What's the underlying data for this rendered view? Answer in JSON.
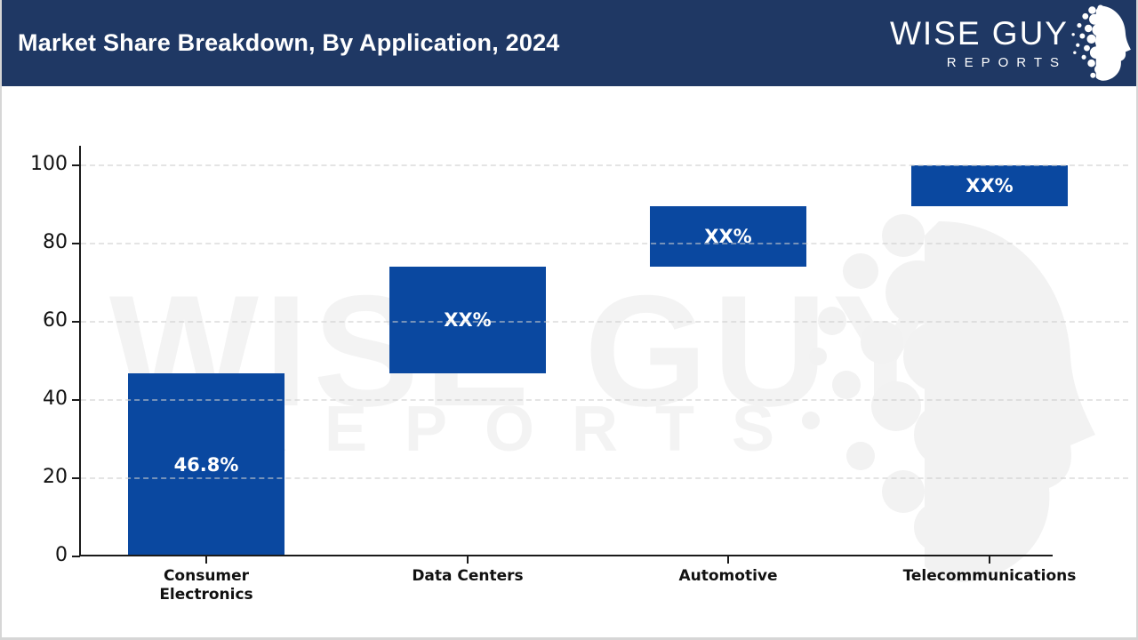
{
  "header": {
    "title": "Market Share Breakdown, By Application, 2024",
    "bg_color": "#1f3864",
    "logo": {
      "line1": "WISE GUY",
      "line2": "REPORTS"
    }
  },
  "watermark": {
    "line1": "WISE GUY",
    "line2": "REPORTS"
  },
  "chart_data": {
    "type": "bar",
    "subtype": "waterfall",
    "title": "Market Share Breakdown, By Application, 2024",
    "xlabel": "",
    "ylabel": "",
    "ylim": [
      0,
      105
    ],
    "yticks": [
      0,
      20,
      40,
      60,
      80,
      100
    ],
    "grid": true,
    "grid_style": "dashed",
    "bar_color": "#0a48a0",
    "label_color": "#ffffff",
    "categories": [
      "Consumer Electronics",
      "Data Centers",
      "Automotive",
      "Telecommunications"
    ],
    "bars": [
      {
        "category": "Consumer Electronics",
        "category_lines": [
          "Consumer",
          "Electronics"
        ],
        "start": 0,
        "end": 46.8,
        "delta": 46.8,
        "displayed_label": "46.8%"
      },
      {
        "category": "Data Centers",
        "category_lines": [
          "Data Centers"
        ],
        "start": 46.8,
        "end": 74.1,
        "delta": 27.3,
        "displayed_label": "XX%"
      },
      {
        "category": "Automotive",
        "category_lines": [
          "Automotive"
        ],
        "start": 74.1,
        "end": 89.5,
        "delta": 15.4,
        "displayed_label": "XX%"
      },
      {
        "category": "Telecommunications",
        "category_lines": [
          "Telecommunications"
        ],
        "start": 89.5,
        "end": 100,
        "delta": 10.5,
        "displayed_label": "XX%"
      }
    ]
  }
}
